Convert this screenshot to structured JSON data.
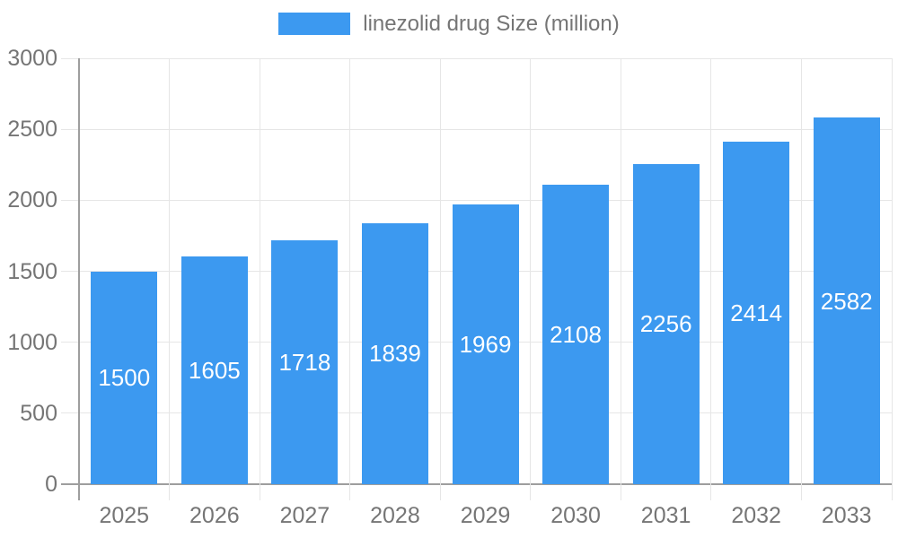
{
  "legend": {
    "label": "linezolid drug Size (million)"
  },
  "colors": {
    "bar": "#3C99F0",
    "bar_label": "#FFFFFF",
    "axis": "#9E9E9E",
    "grid": "#E6E6E6",
    "text": "#757575",
    "background": "#FFFFFF"
  },
  "chart_data": {
    "type": "bar",
    "title": "linezolid drug Size (million)",
    "categories": [
      "2025",
      "2026",
      "2027",
      "2028",
      "2029",
      "2030",
      "2031",
      "2032",
      "2033"
    ],
    "values": [
      1500,
      1605,
      1718,
      1839,
      1969,
      2108,
      2256,
      2414,
      2582
    ],
    "xlabel": "",
    "ylabel": "",
    "ylim": [
      0,
      3000
    ],
    "yticks": [
      0,
      500,
      1000,
      1500,
      2000,
      2500,
      3000
    ],
    "grid": true,
    "legend_position": "top",
    "bar_value_labels": "inside-center-white"
  }
}
